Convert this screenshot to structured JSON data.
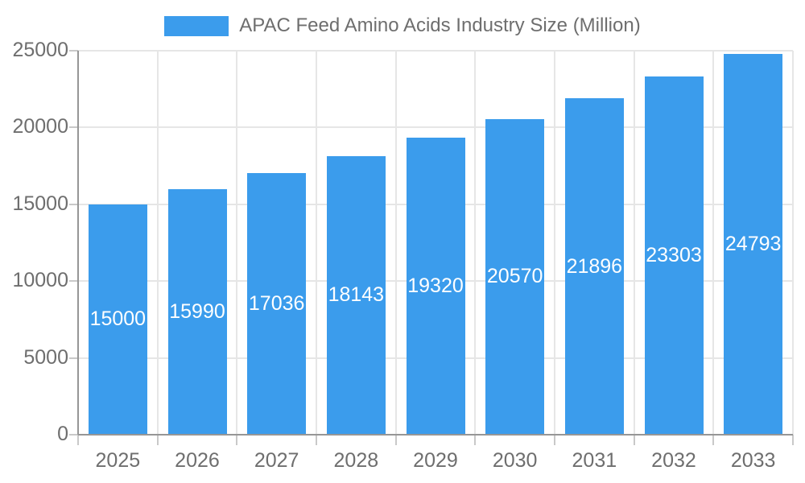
{
  "chart_data": {
    "type": "bar",
    "title": "APAC Feed Amino Acids Industry Size (Million)",
    "legend": {
      "position": "top",
      "label": "APAC Feed Amino Acids Industry Size (Million)"
    },
    "categories": [
      "2025",
      "2026",
      "2027",
      "2028",
      "2029",
      "2030",
      "2031",
      "2032",
      "2033"
    ],
    "series": [
      {
        "name": "APAC Feed Amino Acids Industry Size (Million)",
        "values": [
          15000,
          15990,
          17036,
          18143,
          19320,
          20570,
          21896,
          23303,
          24793
        ]
      }
    ],
    "value_labels": [
      "15000",
      "15990",
      "17036",
      "18143",
      "19320",
      "20570",
      "21896",
      "23303",
      "24793"
    ],
    "xlabel": "",
    "ylabel": "",
    "ylim": [
      0,
      25000
    ],
    "yticks": [
      0,
      5000,
      10000,
      15000,
      20000,
      25000
    ],
    "ytick_labels": [
      "0",
      "5000",
      "10000",
      "15000",
      "20000",
      "25000"
    ],
    "grid": true,
    "value_label_position": "inside-center",
    "colors": {
      "bar": "#3b9cec",
      "axis_line": "#969696",
      "gridline": "#e6e6e6",
      "tick": "#c9c9c9",
      "tick_label": "#6e6e6e",
      "legend_text": "#6e6e6e",
      "value_label": "#ffffff",
      "background": "#ffffff"
    }
  }
}
